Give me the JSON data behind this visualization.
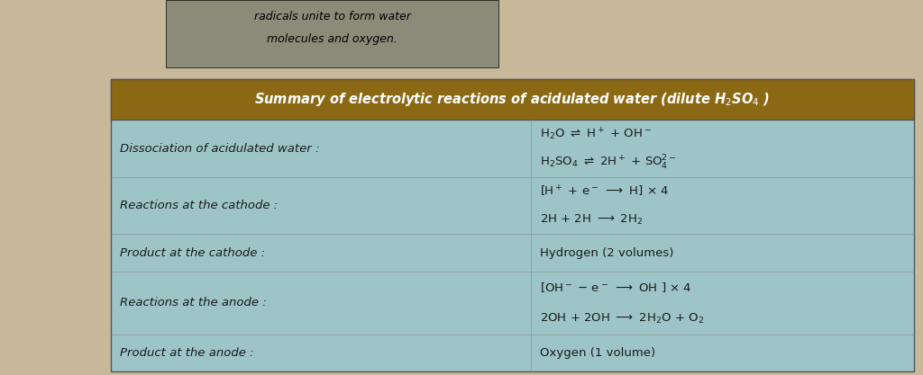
{
  "title": "Summary of electrolytic reactions of acidulated water (dilute H$_2$SO$_4$ )",
  "title_bg": "#8B6914",
  "title_text_color": "#FFFFFF",
  "body_bg": "#9DC5C8",
  "outer_bg": "#C8B89A",
  "top_bg": "#8B8B7A",
  "rows": [
    {
      "label": "Dissociation of acidulated water :",
      "equations": [
        "H$_2$O $\\rightleftharpoons$ H$^+$ + OH$^-$",
        "H$_2$SO$_4$ $\\rightleftharpoons$ 2H$^+$ + SO$_4^{2-}$"
      ]
    },
    {
      "label": "Reactions at the cathode :",
      "equations": [
        "[H$^+$ + e$^-$ $\\longrightarrow$ H] $\\times$ 4",
        "2H + 2H $\\longrightarrow$ 2H$_2$"
      ]
    },
    {
      "label": "Product at the cathode :",
      "equations": [
        "Hydrogen (2 volumes)"
      ]
    },
    {
      "label": "Reactions at the anode :",
      "equations": [
        "[OH$^-$ $-$ e$^-$ $\\longrightarrow$ OH ] $\\times$ 4",
        "2OH + 2OH $\\longrightarrow$ 2H$_2$O + O$_2$"
      ]
    },
    {
      "label": "Product at the anode :",
      "equations": [
        "Oxygen (1 volume)"
      ]
    }
  ],
  "top_text_line1": "radicals unite to form water",
  "top_text_line2": "molecules and oxygen."
}
